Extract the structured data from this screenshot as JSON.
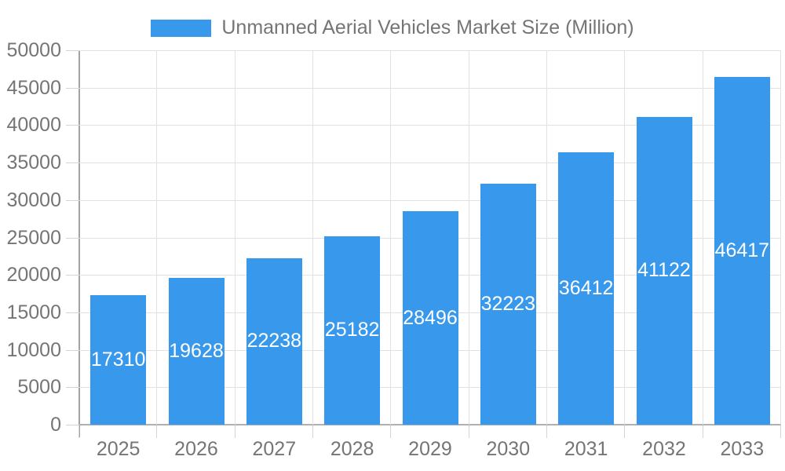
{
  "chart_data": {
    "type": "bar",
    "title": "Unmanned Aerial Vehicles Market Size (Million)",
    "legend": {
      "label": "Unmanned Aerial Vehicles Market Size (Million)",
      "position": "top-center"
    },
    "categories": [
      "2025",
      "2026",
      "2027",
      "2028",
      "2029",
      "2030",
      "2031",
      "2032",
      "2033"
    ],
    "values": [
      17310,
      19628,
      22238,
      25182,
      28496,
      32223,
      36412,
      41122,
      46417
    ],
    "xlabel": "",
    "ylabel": "",
    "ylim": [
      0,
      50000
    ],
    "ytick_step": 5000,
    "ytick_labels": [
      "0",
      "5000",
      "10000",
      "15000",
      "20000",
      "25000",
      "30000",
      "35000",
      "40000",
      "45000",
      "50000"
    ],
    "grid": true,
    "bar_label_position": "inside-center",
    "colors": {
      "bar": "#3898ec",
      "bar_label": "#ffffff",
      "text": "#757575",
      "gridline": "#e2e2e2",
      "axis_line": "#a3a3a3",
      "baseline": "#b0b0b0",
      "tick": "#d4d4d4",
      "background": "#ffffff"
    }
  }
}
